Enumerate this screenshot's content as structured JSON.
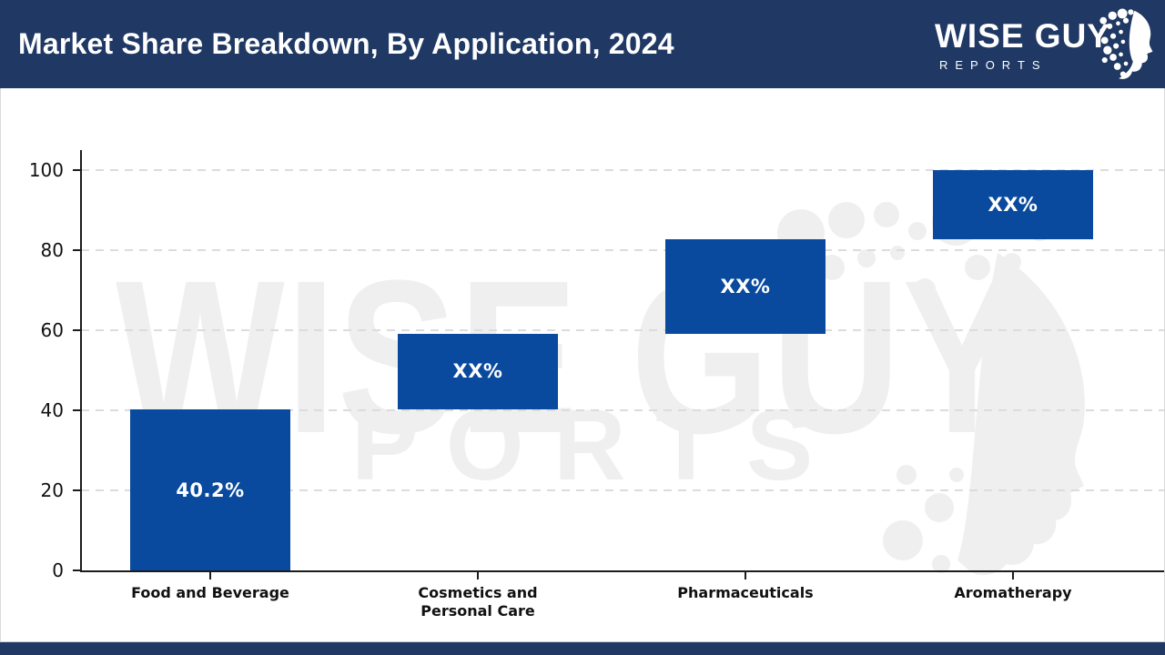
{
  "header": {
    "title": "Market Share Breakdown, By Application, 2024",
    "bg_color": "#1f3864",
    "logo": {
      "name": "WISE GUY",
      "sub": "REPORTS"
    }
  },
  "watermark": {
    "line1": "WISE GUY",
    "line2": "P O R T S"
  },
  "chart_data": {
    "type": "bar",
    "subtype": "waterfall-segments",
    "title": "Market Share Breakdown, By Application, 2024",
    "ylim": [
      0,
      100
    ],
    "yticks": [
      0,
      20,
      40,
      60,
      80,
      100
    ],
    "grid": "horizontal-dashed",
    "legend": "none",
    "bar_color": "#0a4a9e",
    "bar_label_color": "#ffffff",
    "categories": [
      "Food and Beverage",
      "Cosmetics and Personal Care",
      "Pharmaceuticals",
      "Aromatherapy"
    ],
    "category_lines": [
      [
        "Food and Beverage"
      ],
      [
        "Cosmetics and",
        "Personal Care"
      ],
      [
        "Pharmaceuticals"
      ],
      [
        "Aromatherapy"
      ]
    ],
    "segments": [
      {
        "category": "Food and Beverage",
        "start": 0,
        "end": 40.2,
        "label": "40.2%"
      },
      {
        "category": "Cosmetics and Personal Care",
        "start": 40.2,
        "end": 59.2,
        "label": "XX%"
      },
      {
        "category": "Pharmaceuticals",
        "start": 59.2,
        "end": 82.8,
        "label": "XX%"
      },
      {
        "category": "Aromatherapy",
        "start": 82.8,
        "end": 100,
        "label": "XX%"
      }
    ]
  },
  "footer": {
    "bg_color": "#1f3864"
  }
}
